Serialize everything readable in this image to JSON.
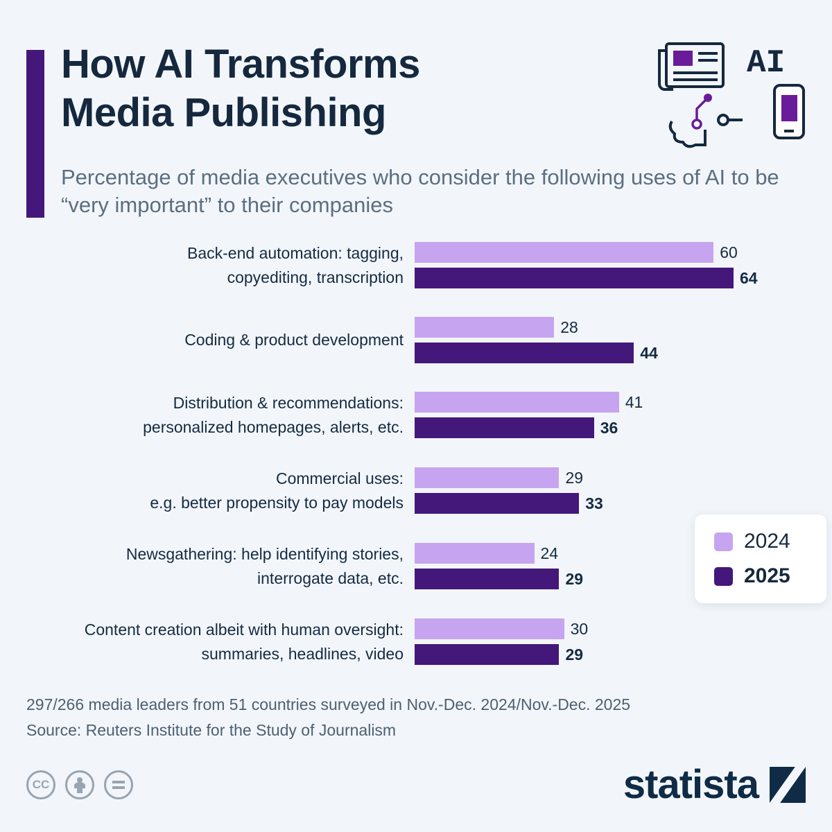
{
  "header": {
    "title_line1": "How AI Transforms",
    "title_line2": "Media Publishing",
    "subtitle": "Percentage of media executives who consider the following uses of AI to be “very important” to their companies"
  },
  "chart_data": {
    "type": "bar",
    "orientation": "horizontal",
    "title": "How AI Transforms Media Publishing",
    "subtitle": "Percentage of media executives who consider the following uses of AI to be “very important” to their companies",
    "categories": [
      {
        "lines": [
          "Back-end automation: tagging,",
          "copyediting, transcription"
        ]
      },
      {
        "lines": [
          "Coding & product development"
        ]
      },
      {
        "lines": [
          "Distribution & recommendations:",
          "personalized homepages, alerts, etc."
        ]
      },
      {
        "lines": [
          "Commercial uses:",
          "e.g. better propensity to pay models"
        ]
      },
      {
        "lines": [
          "Newsgathering: help identifying stories,",
          "interrogate data, etc."
        ]
      },
      {
        "lines": [
          "Content creation albeit with human oversight:",
          "summaries, headlines, video"
        ]
      }
    ],
    "series": [
      {
        "name": "2024",
        "color": "#c7a4ef",
        "values": [
          60,
          28,
          41,
          29,
          24,
          30
        ]
      },
      {
        "name": "2025",
        "color": "#44187a",
        "values": [
          64,
          44,
          36,
          33,
          29,
          29
        ]
      }
    ],
    "xlim": [
      0,
      64
    ],
    "value_labels": true,
    "grid": false,
    "legend_position": "right-middle"
  },
  "legend": {
    "items": [
      {
        "label": "2024",
        "color": "#c7a4ef",
        "bold": false
      },
      {
        "label": "2025",
        "color": "#44187a",
        "bold": true
      }
    ]
  },
  "footer": {
    "note": "297/266 media leaders from 51 countries surveyed in Nov.-Dec. 2024/Nov.-Dec. 2025",
    "source": "Source: Reuters Institute for the Study of Journalism"
  },
  "branding": {
    "logo_text": "statista",
    "cc_label": "CC"
  },
  "colors": {
    "background": "#f2f6fa",
    "accent_dark_purple": "#44187a",
    "accent_light_purple": "#c7a4ef",
    "navy": "#15283e",
    "gray_text": "#5b6e81"
  }
}
